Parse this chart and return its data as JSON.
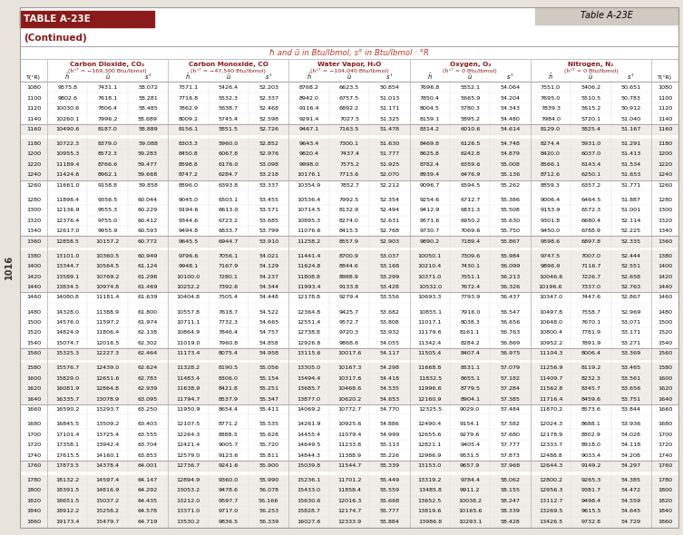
{
  "title": "TABLE A-23E",
  "subtitle": "(Continued)",
  "corner_label": "Table A-23E",
  "units_header": "ħ and ū in Btu/lbmol, s° in Btu/lbmol · °R",
  "page_number": "1016",
  "species": [
    {
      "name": "Carbon Dioxide, CO₂",
      "hf": "(ĥ°ᵀ = −169,300 Btu/lbmol)"
    },
    {
      "name": "Carbon Monoxide, CO",
      "hf": "(ĥ°ᵀ = −47,540 Btu/lbmol)"
    },
    {
      "name": "Water Vapor, H₂O",
      "hf": "(ĥ°ᵀ = −104,040 Btu/lbmol)"
    },
    {
      "name": "Oxygen, O₂",
      "hf": "(ĥ°ᵀ = 0 Btu/lbmol)"
    },
    {
      "name": "Nitrogen, N₂",
      "hf": "(ĥ°ᵀ = 0 Btu/lbmol)"
    }
  ],
  "rows": [
    [
      1080,
      9575.8,
      7431.1,
      58.072,
      7571.1,
      5426.4,
      52.203,
      8768.2,
      6623.5,
      50.854,
      7696.8,
      5552.1,
      54.064,
      7551.0,
      5406.2,
      50.651,
      1080
    ],
    [
      1100,
      9802.6,
      7618.1,
      58.281,
      7716.8,
      5532.3,
      52.337,
      8942.0,
      6757.5,
      51.013,
      7850.4,
      5665.9,
      54.204,
      7695.0,
      5510.5,
      50.783,
      1100
    ],
    [
      1120,
      10030.6,
      7806.4,
      58.485,
      7862.9,
      5638.7,
      52.468,
      9116.4,
      6892.2,
      51.171,
      8004.5,
      5780.3,
      54.343,
      7839.3,
      5615.2,
      50.912,
      1120
    ],
    [
      1140,
      10260.1,
      7996.2,
      58.689,
      8009.2,
      5745.4,
      52.598,
      9291.4,
      7027.5,
      51.325,
      8159.1,
      5895.2,
      54.48,
      7984.0,
      5720.1,
      51.04,
      1140
    ],
    [
      1160,
      10490.6,
      8187.0,
      58.889,
      8156.1,
      5851.5,
      52.726,
      9467.1,
      7163.5,
      51.478,
      8314.2,
      6010.6,
      54.614,
      8129.0,
      5825.4,
      51.167,
      1160
    ],
    [
      1180,
      10722.3,
      8379.0,
      59.088,
      8303.3,
      5960.0,
      52.852,
      9643.4,
      7300.1,
      51.63,
      8469.8,
      6126.5,
      54.748,
      8274.4,
      5931.0,
      51.291,
      1180
    ],
    [
      1200,
      10955.3,
      8572.3,
      59.283,
      8450.8,
      6067.8,
      52.976,
      9820.4,
      7437.4,
      51.777,
      8625.8,
      6242.8,
      54.879,
      8420.0,
      6037.0,
      51.413,
      1200
    ],
    [
      1220,
      11189.4,
      8766.6,
      59.477,
      8598.8,
      6176.0,
      53.098,
      9998.0,
      7575.2,
      51.925,
      8782.4,
      6359.6,
      55.008,
      8566.1,
      6143.4,
      51.534,
      1220
    ],
    [
      1240,
      11424.6,
      8962.1,
      59.668,
      8747.2,
      6284.7,
      53.218,
      10176.1,
      7713.6,
      52.07,
      8939.4,
      6476.9,
      55.136,
      8712.6,
      6250.1,
      51.653,
      1240
    ],
    [
      1260,
      11661.0,
      9158.8,
      59.858,
      8896.0,
      6393.8,
      53.337,
      10354.9,
      7852.7,
      52.212,
      9096.7,
      6594.5,
      55.262,
      8859.3,
      6357.2,
      51.771,
      1260
    ],
    [
      1280,
      11898.4,
      9356.5,
      60.044,
      9045.0,
      6503.1,
      53.455,
      10536.4,
      7992.5,
      52.354,
      9254.6,
      6712.7,
      55.386,
      9006.4,
      6464.5,
      51.887,
      1280
    ],
    [
      1300,
      12136.9,
      9555.3,
      60.229,
      9194.6,
      6613.0,
      53.571,
      10714.5,
      8132.9,
      52.494,
      9412.9,
      6831.3,
      55.508,
      9153.9,
      6572.3,
      51.001,
      1300
    ],
    [
      1320,
      12376.4,
      9755.0,
      60.412,
      9344.6,
      6723.2,
      53.685,
      10895.3,
      8274.0,
      52.631,
      9571.6,
      6950.2,
      55.63,
      9301.8,
      6680.4,
      52.114,
      1320
    ],
    [
      1340,
      12617.0,
      9955.9,
      60.593,
      9494.8,
      6833.7,
      53.799,
      11076.6,
      8415.5,
      52.768,
      9730.7,
      7069.6,
      55.75,
      9450.0,
      6788.9,
      52.225,
      1340
    ],
    [
      1360,
      12858.5,
      10157.2,
      60.772,
      9645.5,
      6944.7,
      53.91,
      11258.2,
      8557.9,
      52.903,
      9890.2,
      7189.4,
      55.867,
      9598.6,
      6897.8,
      52.335,
      1360
    ],
    [
      1380,
      13101.0,
      10360.5,
      60.949,
      9796.6,
      7056.1,
      54.021,
      11441.4,
      8700.9,
      53.037,
      10050.1,
      7309.6,
      55.984,
      9747.5,
      7007.0,
      52.444,
      1380
    ],
    [
      1400,
      13344.7,
      10564.5,
      61.124,
      9948.1,
      7167.9,
      54.129,
      11624.8,
      8844.6,
      53.168,
      10210.4,
      7430.1,
      56.099,
      9896.9,
      7116.7,
      52.551,
      1400
    ],
    [
      1420,
      13589.1,
      10769.2,
      61.298,
      10100.0,
      7280.1,
      54.237,
      11808.8,
      8988.9,
      53.299,
      10371.0,
      7551.1,
      56.213,
      10046.6,
      7226.7,
      52.658,
      1420
    ],
    [
      1440,
      13834.5,
      10974.8,
      61.469,
      10252.2,
      7392.6,
      54.344,
      11993.4,
      9133.8,
      53.428,
      10532.0,
      7672.4,
      56.326,
      10196.6,
      7337.0,
      52.763,
      1440
    ],
    [
      1460,
      14080.8,
      11181.4,
      61.639,
      10404.8,
      7505.4,
      54.448,
      12178.8,
      9279.4,
      53.556,
      10693.3,
      7793.9,
      56.437,
      10347.0,
      7447.6,
      52.867,
      1460
    ],
    [
      1480,
      14328.0,
      11388.9,
      61.8,
      10557.8,
      7618.7,
      54.522,
      12364.8,
      9425.7,
      53.682,
      10855.1,
      7916.0,
      56.547,
      10497.8,
      7558.7,
      52.969,
      1480
    ],
    [
      1500,
      14576.0,
      11597.2,
      61.974,
      10711.1,
      7732.3,
      54.665,
      12551.4,
      9572.7,
      53.808,
      11017.1,
      8038.3,
      56.656,
      10648.0,
      7670.1,
      53.071,
      1500
    ],
    [
      1520,
      14824.9,
      11806.4,
      62.138,
      10864.9,
      7846.4,
      54.757,
      12738.8,
      9720.3,
      53.932,
      11179.6,
      8161.1,
      56.763,
      10800.4,
      7781.9,
      53.171,
      1520
    ],
    [
      1540,
      15074.7,
      12016.5,
      62.302,
      11019.0,
      7960.8,
      54.858,
      12926.8,
      9868.6,
      54.055,
      11342.4,
      8284.2,
      56.869,
      10952.2,
      7891.9,
      53.271,
      1540
    ],
    [
      1560,
      15325.3,
      12227.3,
      62.464,
      11173.4,
      8075.4,
      54.958,
      13115.6,
      10017.6,
      54.117,
      11505.4,
      8407.4,
      56.975,
      11104.3,
      8006.4,
      53.369,
      1560
    ],
    [
      1580,
      15576.7,
      12439.0,
      62.624,
      11328.2,
      8190.5,
      55.056,
      13305.0,
      10167.3,
      54.298,
      11668.8,
      8531.1,
      57.079,
      11256.9,
      8119.2,
      53.465,
      1580
    ],
    [
      1600,
      15829.0,
      12651.6,
      62.783,
      11483.4,
      8306.0,
      55.154,
      13494.4,
      10317.6,
      54.418,
      11832.5,
      8655.1,
      57.182,
      11409.7,
      8232.3,
      53.561,
      1600
    ],
    [
      1620,
      16081.9,
      12864.8,
      62.939,
      11638.9,
      8421.8,
      55.251,
      13685.7,
      10468.6,
      54.535,
      11996.6,
      8779.5,
      57.284,
      11562.8,
      8345.7,
      53.656,
      1620
    ],
    [
      1640,
      16335.7,
      13078.9,
      63.095,
      11794.7,
      8537.9,
      55.347,
      13877.0,
      10620.2,
      54.653,
      12160.9,
      8904.1,
      57.385,
      11716.4,
      8459.6,
      53.751,
      1640
    ],
    [
      1660,
      16590.2,
      13293.7,
      63.25,
      11950.9,
      8654.4,
      55.411,
      14069.2,
      10772.7,
      54.77,
      12325.5,
      9029.0,
      57.484,
      11870.2,
      8573.6,
      53.844,
      1660
    ],
    [
      1680,
      16845.5,
      13509.2,
      63.403,
      12107.5,
      8771.2,
      55.535,
      14261.9,
      10925.6,
      54.886,
      12490.4,
      9154.1,
      57.582,
      12024.3,
      8688.1,
      53.936,
      1680
    ],
    [
      1700,
      17101.4,
      13725.4,
      63.555,
      12264.3,
      8888.3,
      55.628,
      14455.4,
      11079.4,
      54.999,
      12655.6,
      9279.6,
      57.68,
      12178.9,
      8802.9,
      54.028,
      1700
    ],
    [
      1720,
      17358.1,
      13942.4,
      63.704,
      12421.4,
      9005.7,
      55.72,
      14649.5,
      11233.8,
      55.113,
      12821.1,
      9405.4,
      57.777,
      12333.7,
      8918.0,
      54.118,
      1720
    ],
    [
      1740,
      17615.5,
      14160.1,
      63.853,
      12579.0,
      9123.6,
      55.811,
      14844.3,
      11388.9,
      55.226,
      12986.9,
      9531.5,
      57.873,
      12488.8,
      9033.4,
      54.208,
      1740
    ],
    [
      1760,
      17873.5,
      14378.4,
      64.001,
      12736.7,
      9241.6,
      55.9,
      15039.8,
      11544.7,
      55.339,
      13153.0,
      9657.9,
      57.968,
      12644.3,
      9149.2,
      54.297,
      1760
    ],
    [
      1780,
      18132.2,
      14597.4,
      64.147,
      12894.9,
      9360.0,
      55.99,
      15236.1,
      11701.2,
      55.449,
      13319.2,
      9784.4,
      58.062,
      12800.2,
      9265.3,
      54.385,
      1780
    ],
    [
      1800,
      18391.5,
      14816.9,
      64.292,
      13053.2,
      9478.6,
      56.078,
      15433.0,
      11858.4,
      55.559,
      13485.8,
      9911.2,
      58.155,
      12956.3,
      9381.7,
      54.472,
      1800
    ],
    [
      1820,
      18651.5,
      15037.2,
      64.435,
      13212.0,
      9597.7,
      56.166,
      15630.6,
      12016.3,
      55.668,
      13652.5,
      10038.2,
      58.247,
      13112.7,
      9498.4,
      54.559,
      1820
    ],
    [
      1840,
      18912.2,
      15258.2,
      64.578,
      13371.0,
      9717.0,
      56.253,
      15828.7,
      12174.7,
      55.777,
      13819.6,
      10165.6,
      58.339,
      13269.5,
      9615.5,
      54.645,
      1840
    ],
    [
      1860,
      19173.4,
      15479.7,
      64.719,
      13530.2,
      9836.5,
      56.339,
      16027.6,
      12333.9,
      55.884,
      13986.8,
      10293.1,
      58.428,
      13426.5,
      9732.8,
      54.729,
      1860
    ]
  ],
  "group_breaks": [
    4,
    9,
    14,
    19,
    24,
    29,
    34
  ],
  "red_color": "#8B1A1A",
  "header_red": "#C0392B",
  "page_bg": "#E8E4DC",
  "table_bg": "#FFFFFF",
  "alt_bg": "#F0EDE8"
}
